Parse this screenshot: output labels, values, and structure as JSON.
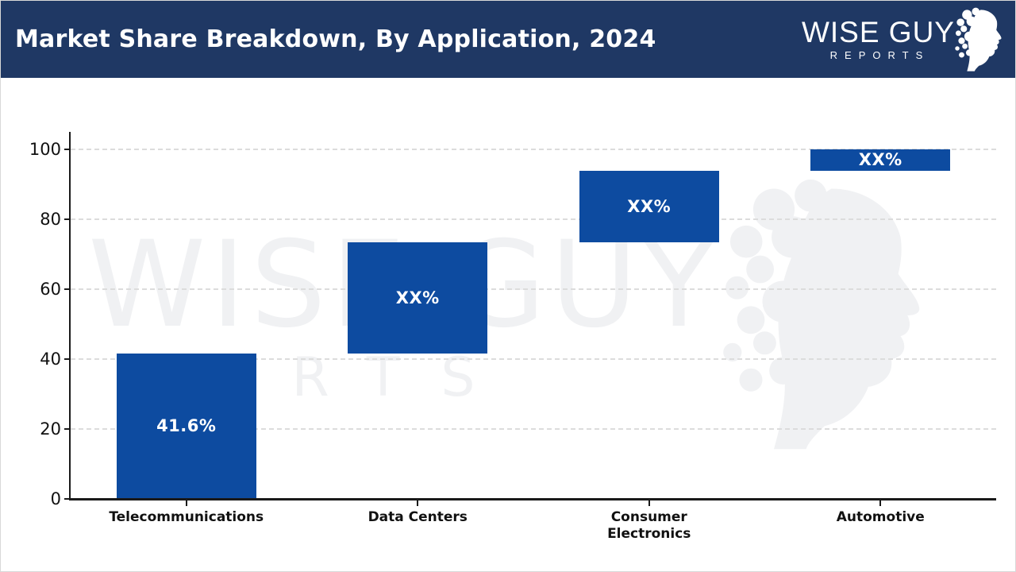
{
  "header": {
    "title": "Market Share Breakdown, By Application, 2024"
  },
  "logo": {
    "line1": "WISE GUY",
    "line2": "REPORTS"
  },
  "watermark": {
    "line1": "WISE GUY",
    "line2": "PORTS"
  },
  "colors": {
    "header_bg": "#1f3864",
    "bar_blue": "#0d4ba0",
    "axis": "#1a1a1a",
    "gridline": "#dcdcdc",
    "watermark": "#f0f1f3"
  },
  "chart_data": {
    "type": "bar",
    "subtype": "waterfall",
    "title": "Market Share Breakdown, By Application, 2024",
    "xlabel": "",
    "ylabel": "",
    "categories": [
      "Telecommunications",
      "Data Centers",
      "Consumer\nElectronics",
      "Automotive"
    ],
    "segments": [
      {
        "category": "Telecommunications",
        "start": 0,
        "end": 41.6,
        "label": "41.6%"
      },
      {
        "category": "Data Centers",
        "start": 41.6,
        "end": 73.4,
        "label": "XX%"
      },
      {
        "category": "Consumer Electronics",
        "start": 73.4,
        "end": 93.9,
        "label": "XX%"
      },
      {
        "category": "Automotive",
        "start": 93.9,
        "end": 100,
        "label": "XX%"
      }
    ],
    "y_ticks": [
      0,
      20,
      40,
      60,
      80,
      100
    ],
    "ylim": [
      0,
      100
    ],
    "grid": "horizontal-dashed",
    "legend": "none",
    "bar_color": "#0d4ba0"
  }
}
